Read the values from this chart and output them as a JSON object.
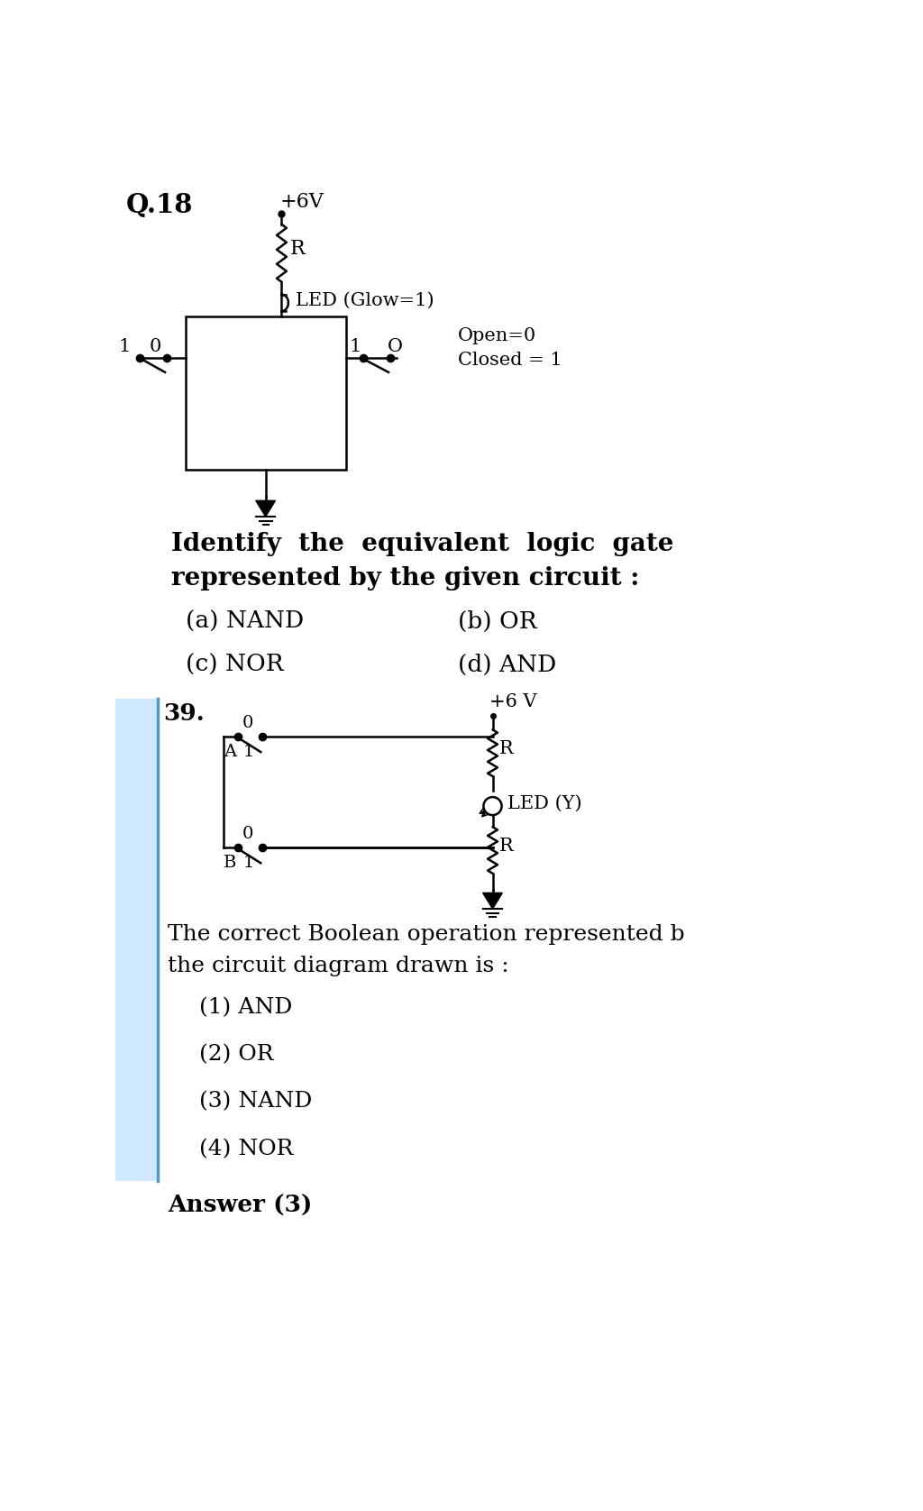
{
  "bg_color": "#ffffff",
  "text_color": "#000000",
  "highlight_color": "#d0e8ff",
  "q18_label": "Q.18",
  "vcc18": "+6V",
  "R_label": "R",
  "led18_label": "LED (Glow=1)",
  "open_label": "Open=0",
  "closed_label": "Closed = 1",
  "sw1_top": "1",
  "sw1_bot": "0",
  "sw2_top": "1",
  "sw2_bot": "O",
  "q18_line1": "Identify  the  equivalent  logic  gate",
  "q18_line2": "represented by the given circuit :",
  "opt_a": "(a) NAND",
  "opt_b": "(b) OR",
  "opt_c": "(c) NOR",
  "opt_d": "(d) AND",
  "q39_label": "39.",
  "vcc39": "+6 V",
  "R_top": "R",
  "led39_label": "LED (Y)",
  "R_bot": "R",
  "swA_top": "0",
  "swA_side": "A",
  "swA_num": "1",
  "swB_top": "0",
  "swB_side": "B",
  "swB_num": "1",
  "q39_line1": "The correct Boolean operation represented b",
  "q39_line2": "the circuit diagram drawn is :",
  "n1": "(1) AND",
  "n2": "(2) OR",
  "n3": "(3) NAND",
  "n4": "(4) NOR",
  "answer": "Answer (3)"
}
